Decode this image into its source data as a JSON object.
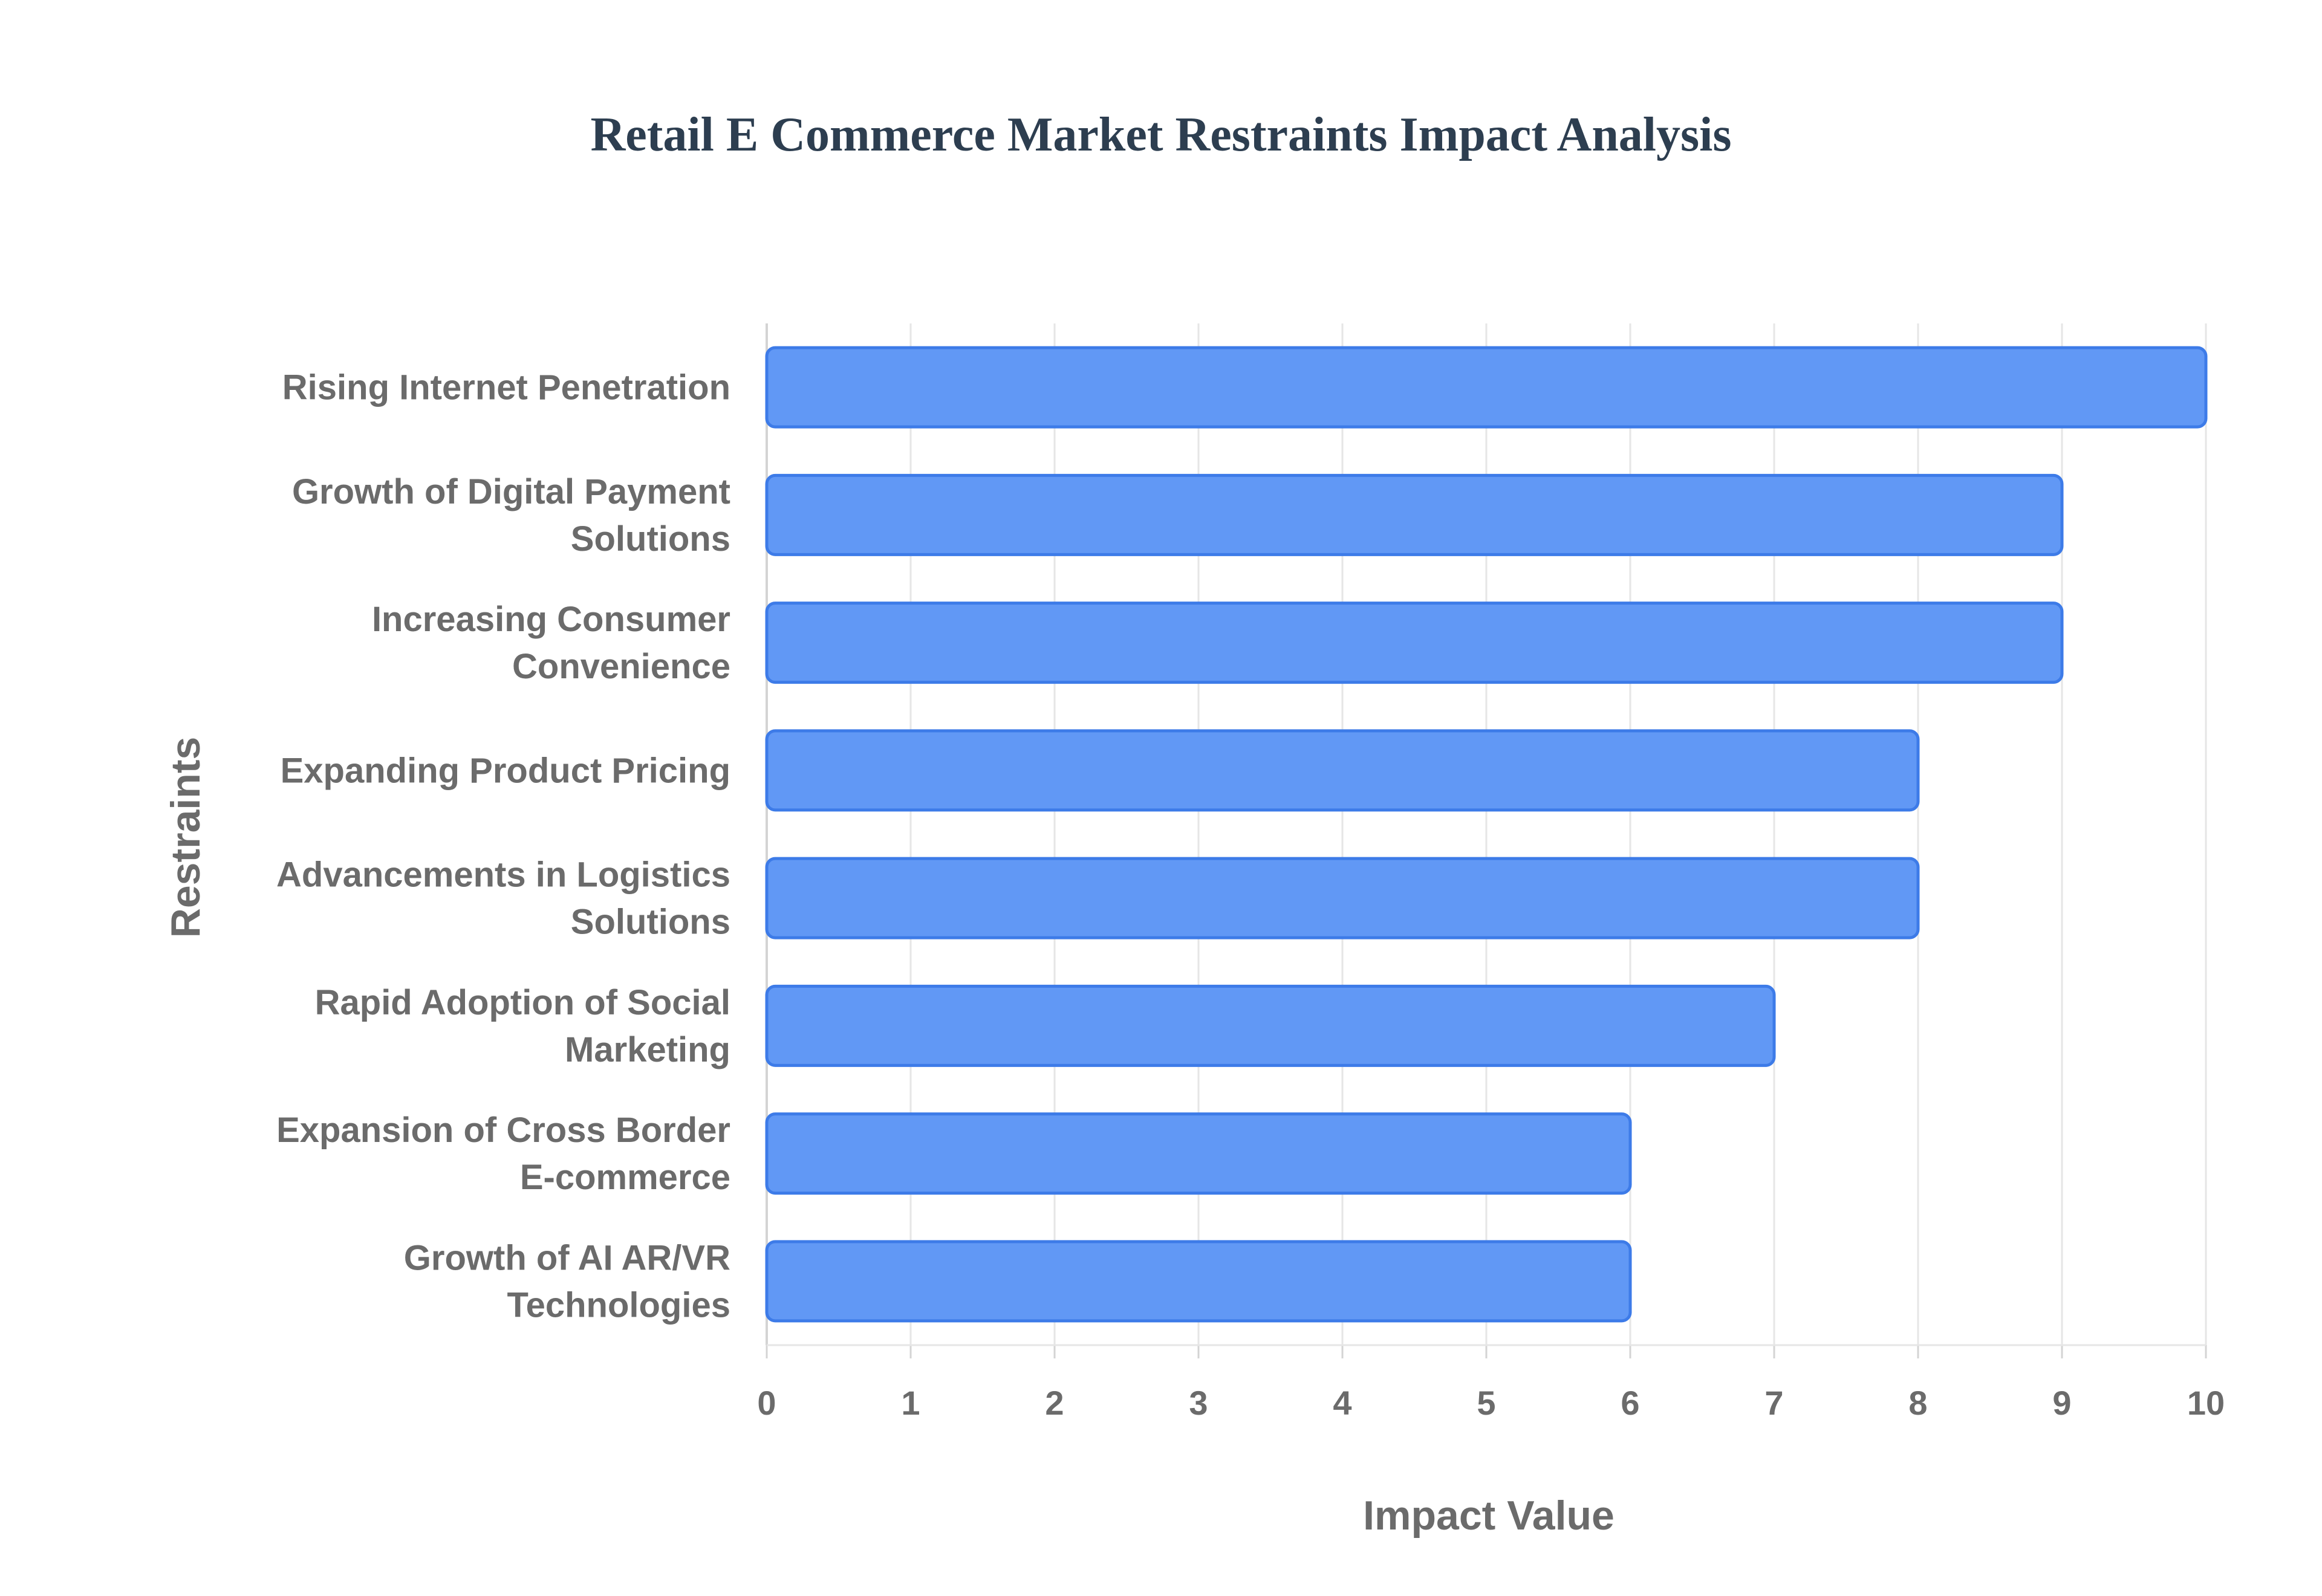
{
  "chart_data": {
    "type": "bar",
    "orientation": "horizontal",
    "title": "Retail E Commerce Market Restraints Impact Analysis",
    "xlabel": "Impact Value",
    "ylabel": "Restraints",
    "categories": [
      [
        "Rising Internet Penetration"
      ],
      [
        "Growth of Digital Payment",
        "Solutions"
      ],
      [
        "Increasing Consumer",
        "Convenience"
      ],
      [
        "Expanding Product Pricing"
      ],
      [
        "Advancements in Logistics",
        "Solutions"
      ],
      [
        "Rapid Adoption of Social",
        "Marketing"
      ],
      [
        "Expansion of Cross Border",
        "E-commerce"
      ],
      [
        "Growth of AI AR/VR",
        "Technologies"
      ]
    ],
    "values": [
      10,
      9,
      9,
      8,
      8,
      7,
      6,
      6
    ],
    "xlim": [
      0,
      10
    ],
    "xticks": [
      "0",
      "1",
      "2",
      "3",
      "4",
      "5",
      "6",
      "7",
      "8",
      "9",
      "10"
    ],
    "grid": true,
    "bar_color": "#6198f5",
    "bar_edge_color": "#3d7be8"
  }
}
